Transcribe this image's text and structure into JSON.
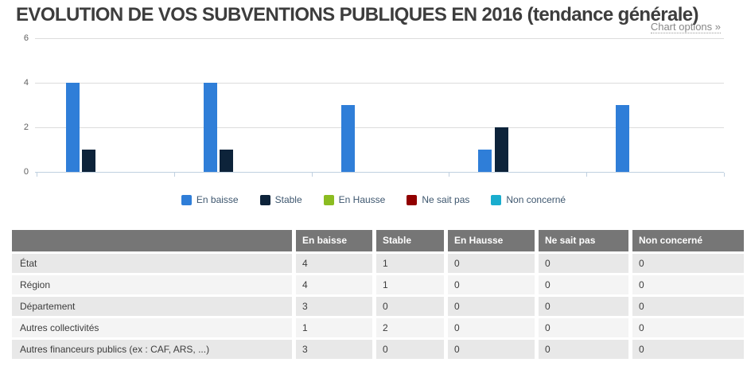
{
  "page": {
    "title": "EVOLUTION DE VOS SUBVENTIONS PUBLIQUES EN 2016 (tendance générale)",
    "chart_options_label": "Chart options »"
  },
  "chart_data": {
    "type": "bar",
    "title": "EVOLUTION DE VOS SUBVENTIONS PUBLIQUES EN 2016 (tendance générale)",
    "categories": [
      "État",
      "Région",
      "Département",
      "Autres collectivités",
      "Autres financeurs publics (ex : CAF, ARS, ...)"
    ],
    "series": [
      {
        "name": "En baisse",
        "color": "#2f7ed8",
        "values": [
          4,
          4,
          3,
          1,
          3
        ]
      },
      {
        "name": "Stable",
        "color": "#0d233a",
        "values": [
          1,
          1,
          0,
          2,
          0
        ]
      },
      {
        "name": "En Hausse",
        "color": "#8bbc21",
        "values": [
          0,
          0,
          0,
          0,
          0
        ]
      },
      {
        "name": "Ne sait pas",
        "color": "#910000",
        "values": [
          0,
          0,
          0,
          0,
          0
        ]
      },
      {
        "name": "Non concerné",
        "color": "#1aadce",
        "values": [
          0,
          0,
          0,
          0,
          0
        ]
      }
    ],
    "xlabel": "",
    "ylabel": "",
    "ylim": [
      0,
      6
    ],
    "yticks": [
      0,
      2,
      4,
      6
    ],
    "grid": true,
    "x_tick_labels_visible": false,
    "legend_position": "bottom"
  },
  "table": {
    "headers": [
      "",
      "En baisse",
      "Stable",
      "En Hausse",
      "Ne sait pas",
      "Non concerné"
    ],
    "rows": [
      {
        "label": "État",
        "values": [
          "4",
          "1",
          "0",
          "0",
          "0"
        ]
      },
      {
        "label": "Région",
        "values": [
          "4",
          "1",
          "0",
          "0",
          "0"
        ]
      },
      {
        "label": "Département",
        "values": [
          "3",
          "0",
          "0",
          "0",
          "0"
        ]
      },
      {
        "label": "Autres collectivités",
        "values": [
          "1",
          "2",
          "0",
          "0",
          "0"
        ]
      },
      {
        "label": "Autres financeurs publics (ex : CAF, ARS, ...)",
        "values": [
          "3",
          "0",
          "0",
          "0",
          "0"
        ]
      }
    ]
  }
}
